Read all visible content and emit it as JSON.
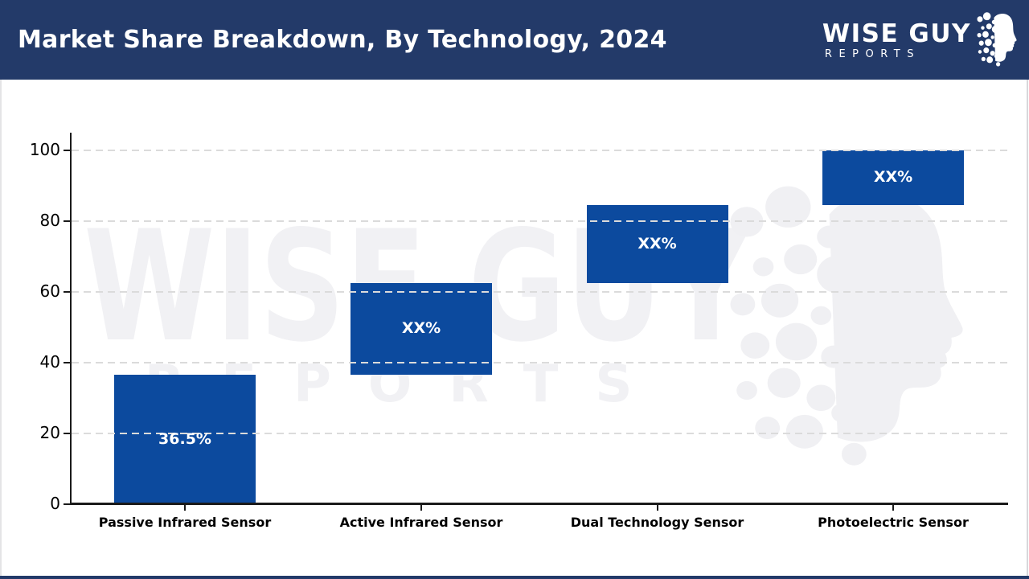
{
  "header": {
    "title": "Market Share Breakdown, By Technology, 2024",
    "logo": {
      "primary": "WISE GUY",
      "secondary": "REPORTS"
    }
  },
  "watermark": {
    "primary": "WISE GUY",
    "secondary": "REPORTS"
  },
  "chart_data": {
    "type": "bar",
    "subtype": "floating-waterfall",
    "title": "Market Share Breakdown, By Technology, 2024",
    "categories": [
      "Passive Infrared Sensor",
      "Active Infrared Sensor",
      "Dual Technology Sensor",
      "Photoelectric Sensor"
    ],
    "series": [
      {
        "name": "Market Share",
        "segments": [
          {
            "category": "Passive Infrared Sensor",
            "start": 0,
            "end": 36.5,
            "size": 36.5,
            "label": "36.5%"
          },
          {
            "category": "Active Infrared Sensor",
            "start": 36.5,
            "end": 62.5,
            "size": 26,
            "label": "XX%"
          },
          {
            "category": "Dual Technology Sensor",
            "start": 62.5,
            "end": 84.5,
            "size": 22,
            "label": "XX%"
          },
          {
            "category": "Photoelectric Sensor",
            "start": 84.5,
            "end": 100,
            "size": 15.5,
            "label": "XX%"
          }
        ]
      }
    ],
    "xlabel": "",
    "ylabel": "",
    "ylim": [
      0,
      100
    ],
    "yticks": [
      0,
      20,
      40,
      60,
      80,
      100
    ],
    "grid": "horizontal-dashed, drawn over bars",
    "legend": "none",
    "colors": {
      "bar": "#0C4A9E",
      "grid": "#DBDBDB",
      "axis": "#1A1A1A",
      "bar_label_text": "#FFFFFF",
      "header_bg": "#233A69",
      "header_text": "#FFFFFF",
      "watermark": "#F1F1F4"
    }
  }
}
